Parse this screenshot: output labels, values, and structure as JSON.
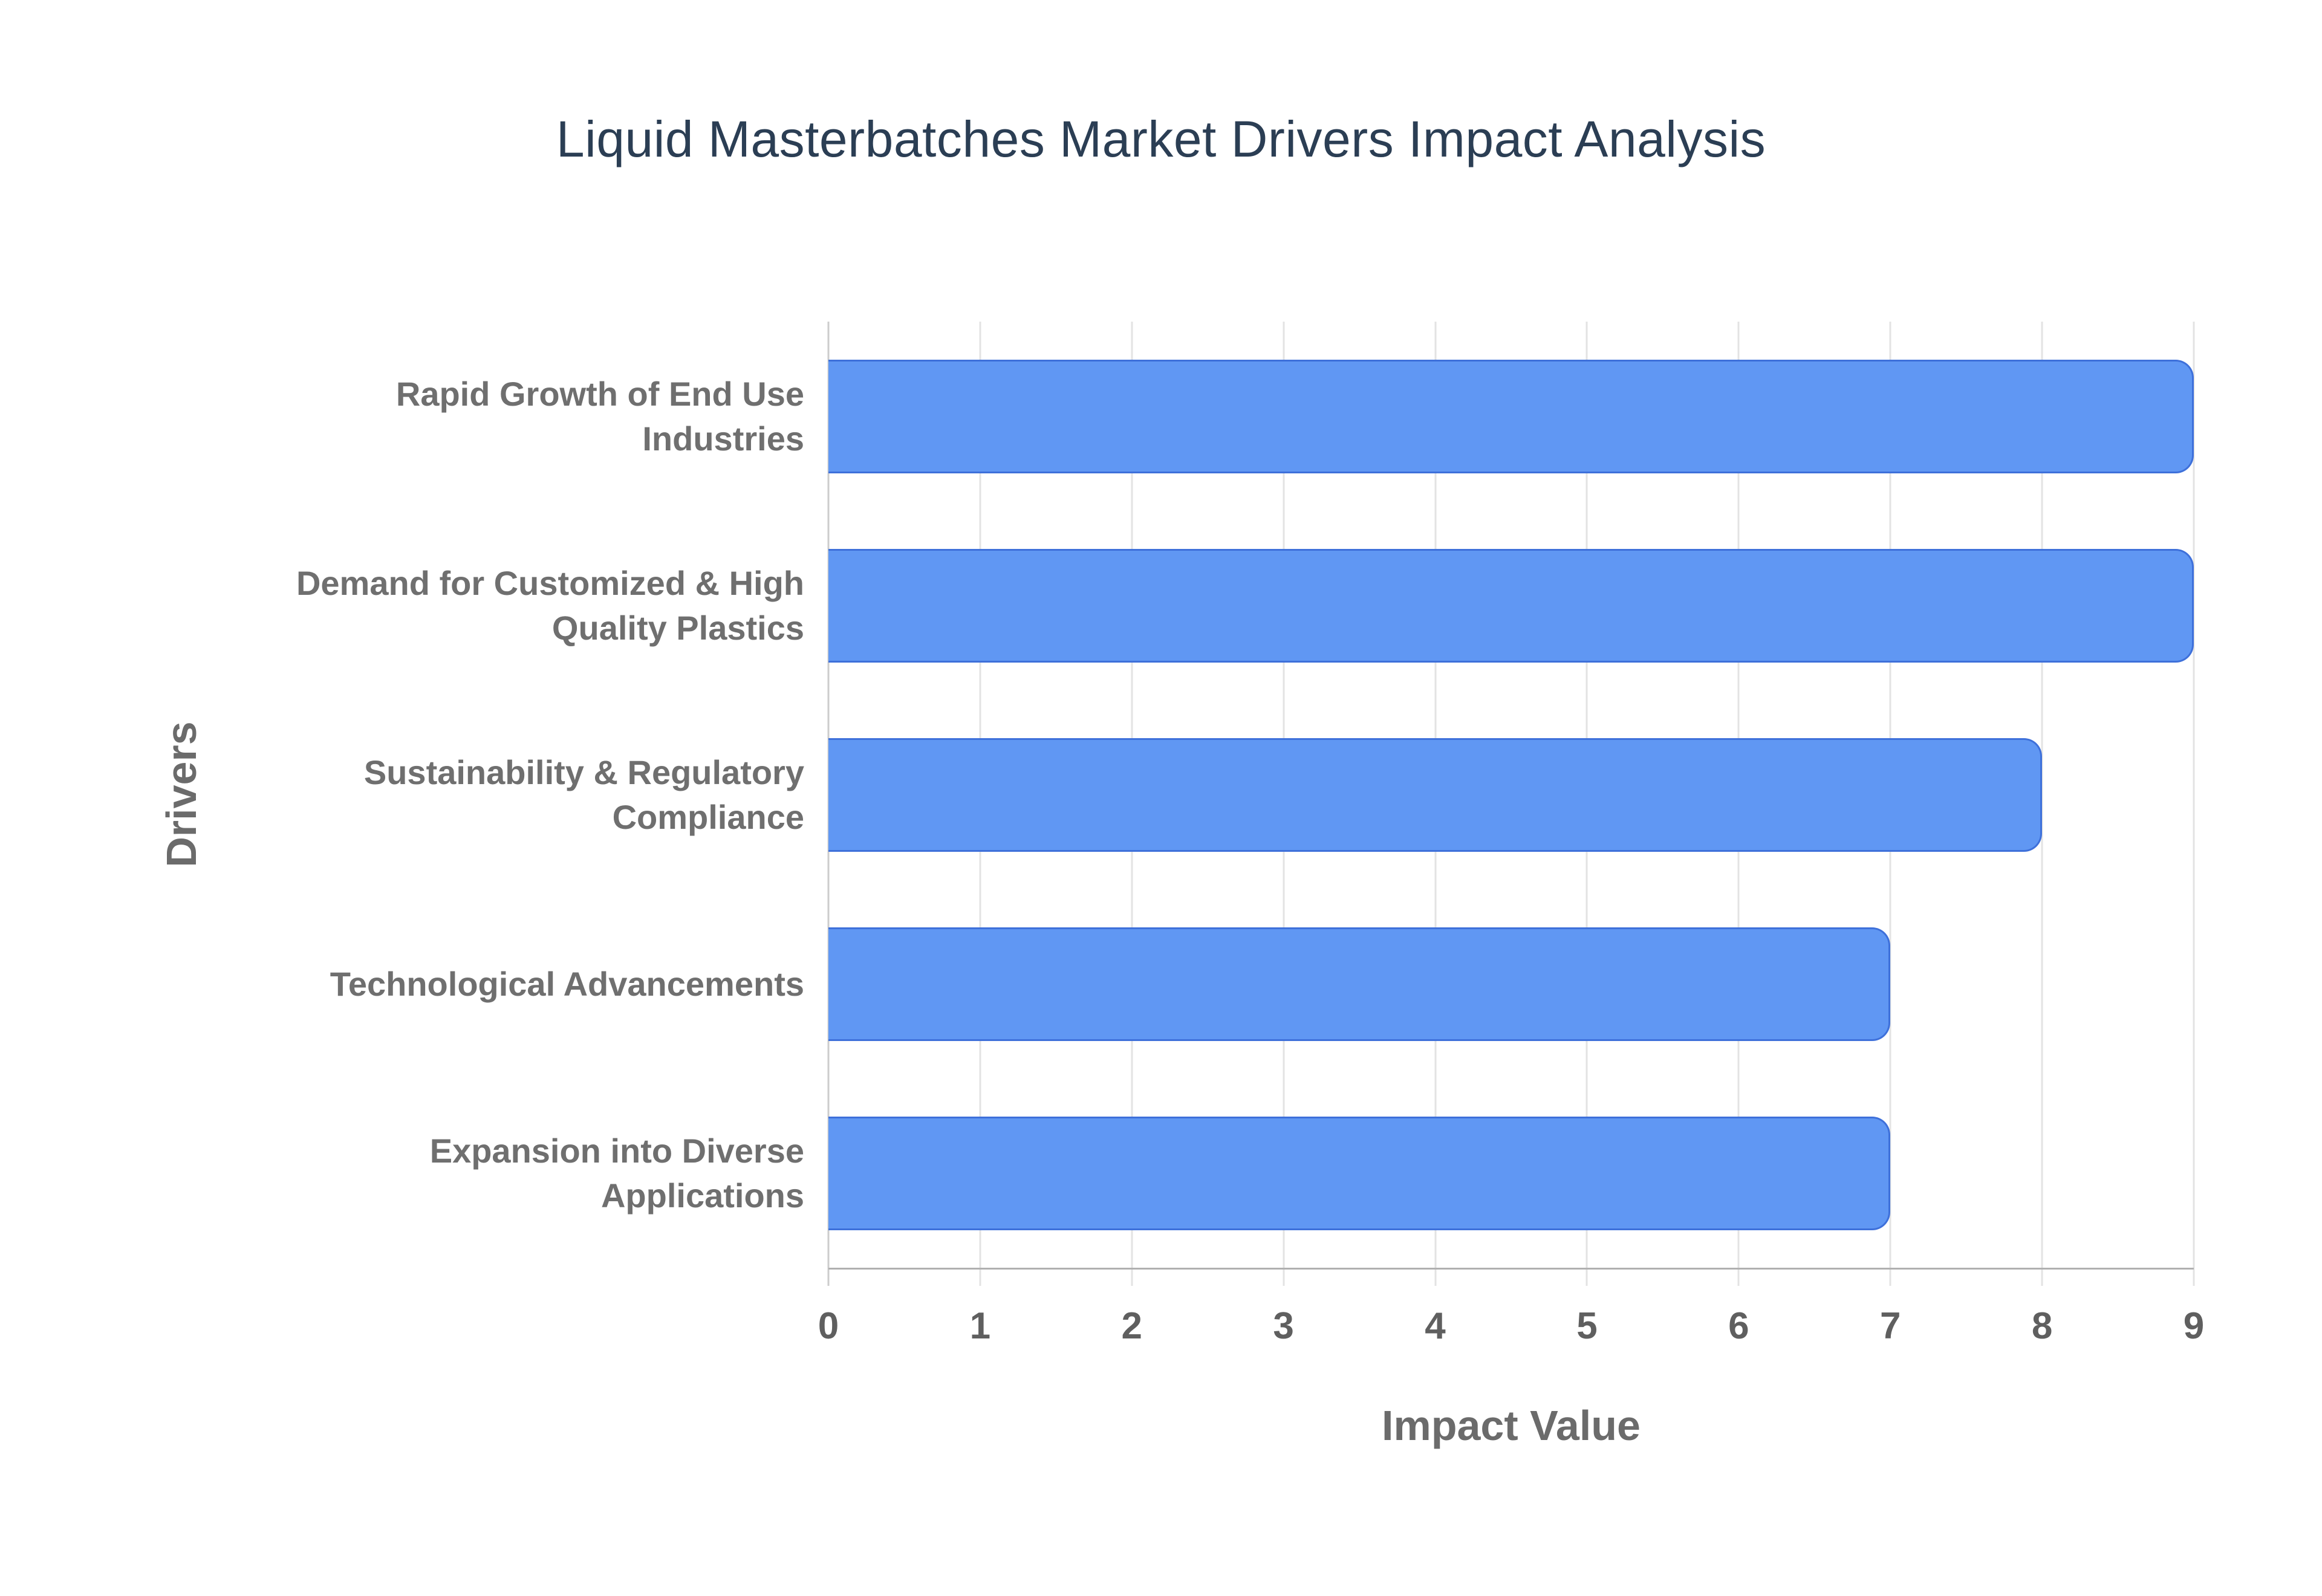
{
  "chart_data": {
    "type": "bar",
    "orientation": "horizontal",
    "title": "Liquid Masterbatches Market Drivers Impact Analysis",
    "xlabel": "Impact Value",
    "ylabel": "Drivers",
    "categories": [
      "Rapid Growth of End Use Industries",
      "Demand for Customized & High Quality Plastics",
      "Sustainability & Regulatory Compliance",
      "Technological Advancements",
      "Expansion into Diverse Applications"
    ],
    "values": [
      9,
      9,
      8,
      7,
      7
    ],
    "xlim": [
      0,
      9
    ],
    "xticks": [
      0,
      1,
      2,
      3,
      4,
      5,
      6,
      7,
      8,
      9
    ],
    "grid": "vertical",
    "legend": "none",
    "colors": {
      "bar_fill": "#6097f3",
      "bar_border": "#3e70da",
      "title_text": "#2b3e54",
      "label_text": "#6f6f6f",
      "tick_text": "#5f5f5f",
      "gridline": "#e3e3e3",
      "axis_line": "#b0b0b0",
      "background": "#ffffff"
    }
  }
}
